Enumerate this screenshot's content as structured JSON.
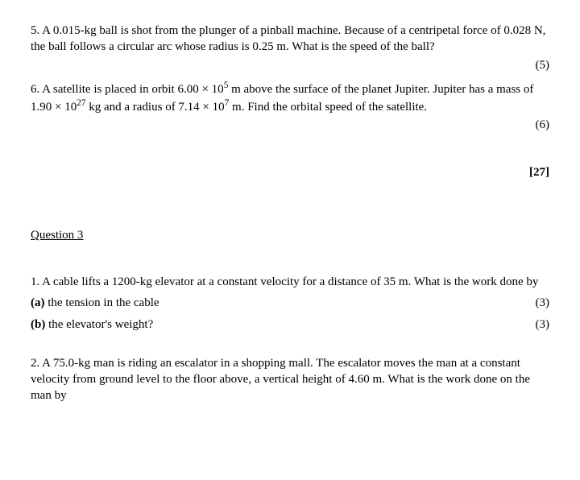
{
  "q5": {
    "text": "5. A 0.015-kg ball is shot from the plunger of a pinball machine. Because of a centripetal force of 0.028 N, the ball follows a circular arc whose radius is 0.25 m. What is the speed of the ball?",
    "marks": "(5)"
  },
  "q6": {
    "text_a": "6. A satellite is placed in orbit 6.00 × 10",
    "exp_a": "5",
    "text_b": " m above the surface of the planet Jupiter. Jupiter has a mass of 1.90 × 10",
    "exp_b": "27",
    "text_c": " kg and a radius of 7.14 × 10",
    "exp_c": "7",
    "text_d": " m. Find the orbital speed of the satellite.",
    "marks": "(6)"
  },
  "section_total": "[27]",
  "question3": {
    "heading": "Question 3",
    "p1": {
      "text": "1. A cable lifts a 1200-kg elevator at a constant velocity for a distance of 35 m. What is the work done by",
      "a_label": "(a) the tension in the cable",
      "a_marks": "(3)",
      "b_label": "(b) the elevator's weight?",
      "b_marks": "(3)"
    },
    "p2": {
      "text": "2. A 75.0-kg man is riding an escalator in a shopping mall. The escalator moves the man at a constant velocity from ground level to the floor above, a vertical height of 4.60 m. What is the work done on the man by"
    }
  }
}
